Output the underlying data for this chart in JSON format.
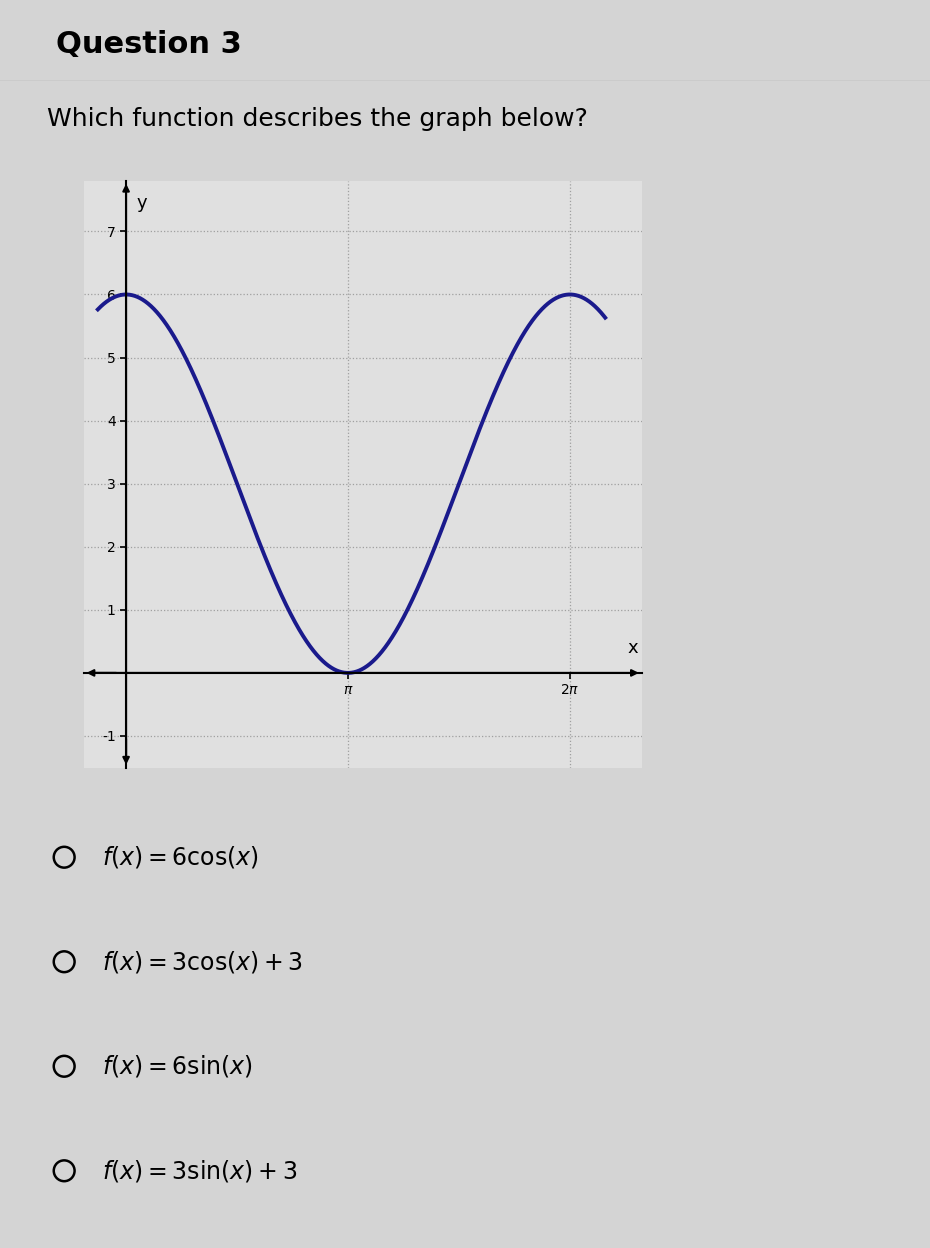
{
  "title": "Question 3",
  "question_text": "Which function describes the graph below?",
  "page_bg_color": "#d4d4d4",
  "title_bg_color": "#d4d4d4",
  "graph_bg_color": "#e0e0e0",
  "curve_color": "#1a1a8c",
  "curve_linewidth": 2.8,
  "x_min": -0.6,
  "x_max": 7.3,
  "y_min": -1.5,
  "y_max": 7.8,
  "yticks": [
    -1,
    1,
    2,
    3,
    4,
    5,
    6,
    7
  ],
  "grid_color": "#a0a0a0",
  "amplitude": 3,
  "vertical_shift": 3,
  "x_label": "x",
  "y_label": "y",
  "choices": [
    "$f(x) = 6\\cos(x)$",
    "$f(x) = 3\\cos(x) + 3$",
    "$f(x) = 6\\sin(x)$",
    "$f(x) = 3\\sin(x) + 3$"
  ],
  "choice_fontsize": 17,
  "title_fontsize": 22,
  "question_fontsize": 18,
  "axis_tick_fontsize": 12
}
